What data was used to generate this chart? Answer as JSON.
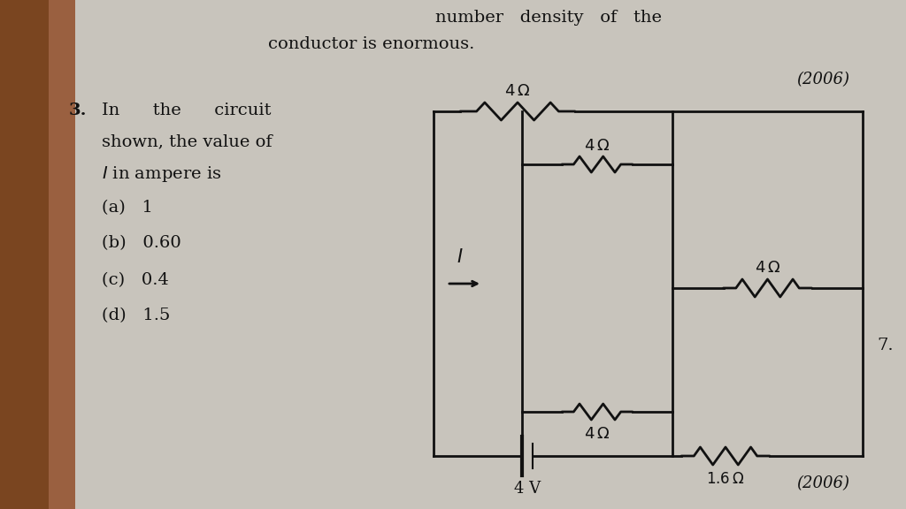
{
  "bg_left_color": "#8B5A2B",
  "page_color": "#c8c4bc",
  "year": "(2006)",
  "q_number": "3.",
  "options": [
    "(a)   1",
    "(b)   0.60",
    "(c)   0.4",
    "(d)   1.5"
  ],
  "current_label": "I",
  "voltage_label": "4 V",
  "right_number": "7.",
  "bottom_year": "(2006)",
  "text_color": "#111111",
  "circuit_color": "#111111",
  "lw": 2.0
}
